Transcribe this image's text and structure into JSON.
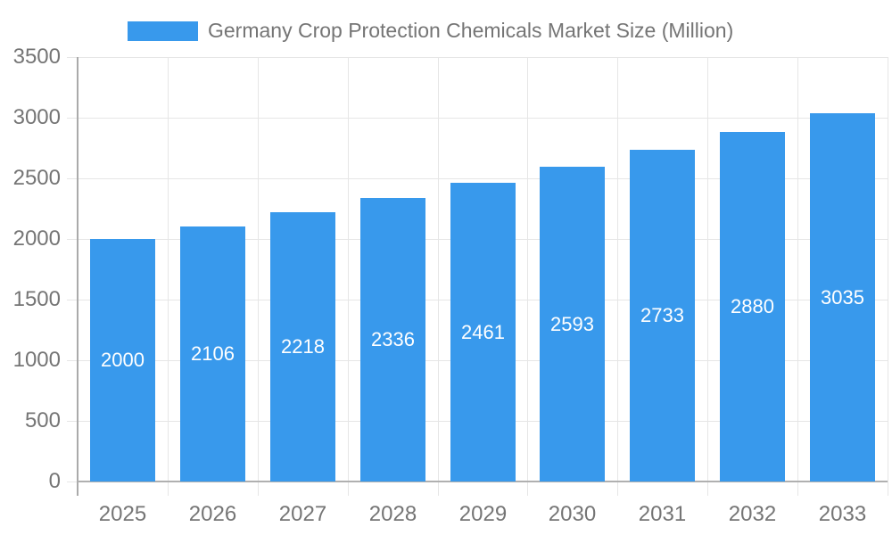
{
  "chart_data": {
    "type": "bar",
    "title": "Germany Crop Protection Chemicals Market Size (Million)",
    "categories": [
      "2025",
      "2026",
      "2027",
      "2028",
      "2029",
      "2030",
      "2031",
      "2032",
      "2033"
    ],
    "series": [
      {
        "name": "Germany Crop Protection Chemicals Market Size (Million)",
        "values": [
          2000,
          2106,
          2218,
          2336,
          2461,
          2593,
          2733,
          2880,
          3035
        ]
      }
    ],
    "bar_value_labels": [
      "2000",
      "2106",
      "2218",
      "2336",
      "2461",
      "2593",
      "2733",
      "2880",
      "3035"
    ],
    "xlabel": "",
    "ylabel": "",
    "ylim": [
      0,
      3500
    ],
    "yticks": [
      0,
      500,
      1000,
      1500,
      2000,
      2500,
      3000,
      3500
    ],
    "grid": true,
    "legend_position": "top",
    "colors": {
      "bar": "#3899EC",
      "bar_label": "#FFFFFF",
      "axis_text": "#757575",
      "axis_line": "#AAAAAA",
      "baseline": "#B0B0B0",
      "gridline": "#E6E6E6",
      "background": "#FFFFFF"
    }
  }
}
